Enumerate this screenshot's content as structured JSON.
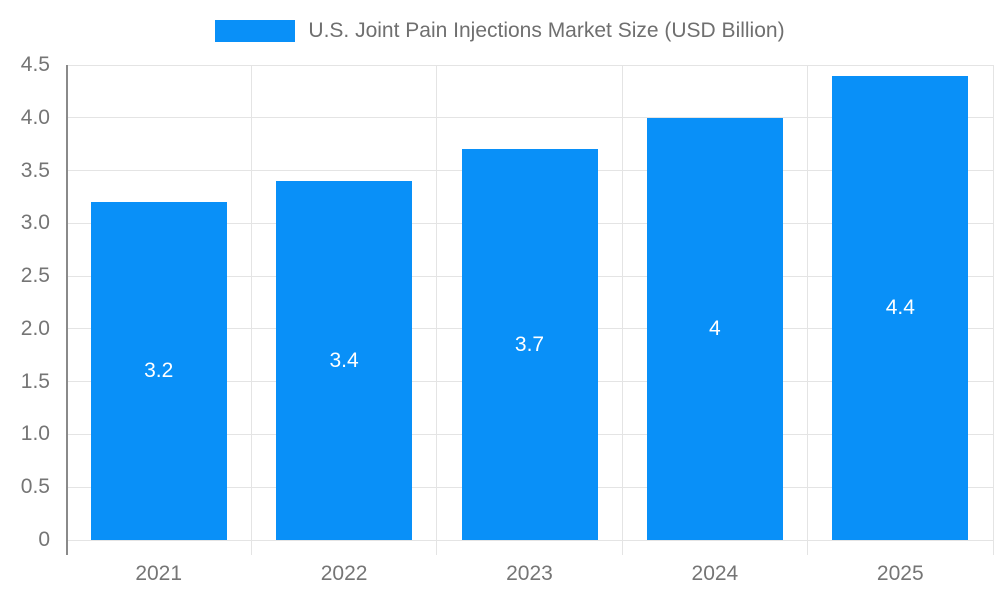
{
  "chart_data": {
    "type": "bar",
    "title": "U.S. Joint Pain Injections Market Size (USD Billion)",
    "legend": {
      "label": "U.S. Joint Pain Injections Market Size (USD Billion)",
      "position": "top"
    },
    "categories": [
      "2021",
      "2022",
      "2023",
      "2024",
      "2025"
    ],
    "series": [
      {
        "name": "U.S. Joint Pain Injections Market Size (USD Billion)",
        "values": [
          3.2,
          3.4,
          3.7,
          4,
          4.4
        ]
      }
    ],
    "bar_labels": [
      "3.2",
      "3.4",
      "3.7",
      "4",
      "4.4"
    ],
    "xlabel": "",
    "ylabel": "",
    "ylim": [
      0,
      4.5
    ],
    "ytick_step": 0.5,
    "ytick_labels": [
      "0",
      "0.5",
      "1.0",
      "1.5",
      "2.0",
      "2.5",
      "3.0",
      "3.5",
      "4.0",
      "4.5"
    ],
    "grid": true,
    "colors": {
      "bar": "#0990f8",
      "bar_label": "#ffffff",
      "axis_line": "#8a8a8a",
      "gridline": "#e4e4e4",
      "tick_label": "#757575",
      "legend_text": "#6f6f6f",
      "background": "#ffffff"
    }
  }
}
